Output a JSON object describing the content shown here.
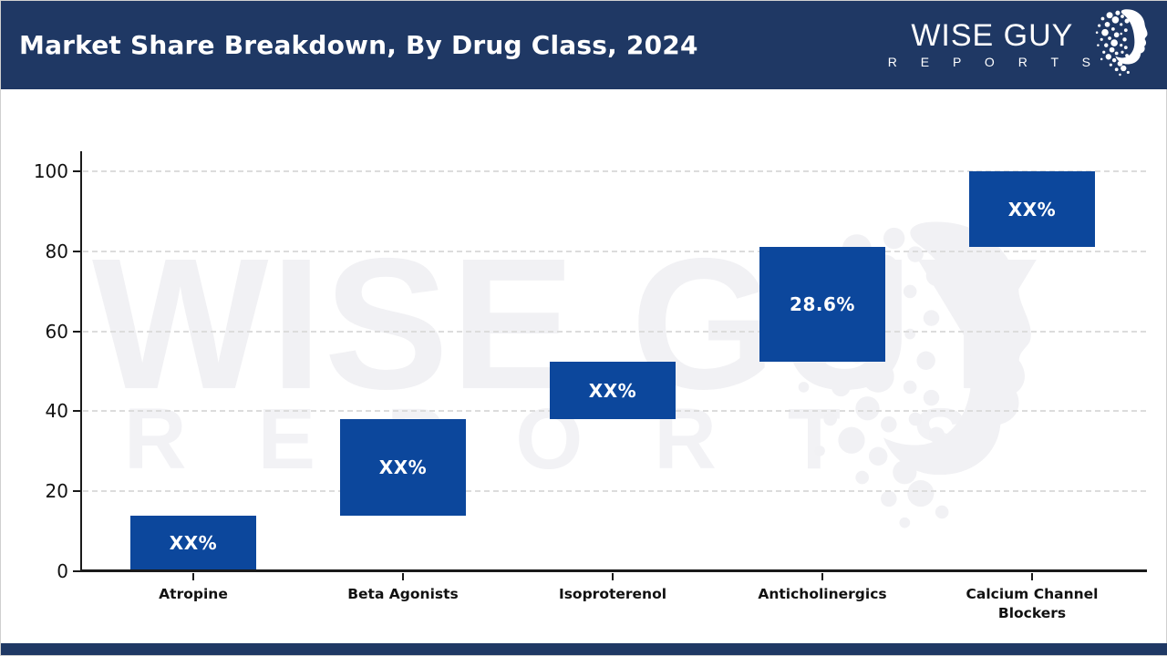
{
  "header": {
    "title": "Market Share Breakdown, By Drug Class, 2024",
    "logo": {
      "name_line": "WISE GUY",
      "reports_line": "R E P O R T S"
    }
  },
  "watermark": {
    "name_line": "WISE GUY",
    "reports_line": "REPORTS"
  },
  "chart_data": {
    "type": "bar",
    "subtype": "floating-waterfall",
    "title": "Market Share Breakdown, By Drug Class, 2024",
    "categories": [
      "Atropine",
      "Beta Agonists",
      "Isoproterenol",
      "Anticholinergics",
      "Calcium Channel Blockers"
    ],
    "segments": [
      {
        "category": "Atropine",
        "start": 0,
        "end": 14,
        "value": 14,
        "label": "XX%"
      },
      {
        "category": "Beta Agonists",
        "start": 14,
        "end": 38,
        "value": 24,
        "label": "XX%"
      },
      {
        "category": "Isoproterenol",
        "start": 38,
        "end": 52.4,
        "value": 14.4,
        "label": "XX%"
      },
      {
        "category": "Anticholinergics",
        "start": 52.4,
        "end": 81,
        "value": 28.6,
        "label": "28.6%"
      },
      {
        "category": "Calcium Channel Blockers",
        "start": 81,
        "end": 100,
        "value": 19,
        "label": "XX%"
      }
    ],
    "yticks": [
      0,
      20,
      40,
      60,
      80,
      100
    ],
    "ylim": [
      0,
      105
    ],
    "xlabel": "",
    "ylabel": "",
    "grid": "horizontal-dashed",
    "legend": "none",
    "bar_color": "#0c479c",
    "bar_label_color": "#ffffff"
  },
  "colors": {
    "header_bg": "#1f3864",
    "footer_bg": "#1f3864",
    "bar": "#0c479c",
    "axis": "#1a1a1a",
    "gridline": "#dcdcdc",
    "watermark": "#f1f1f4"
  }
}
